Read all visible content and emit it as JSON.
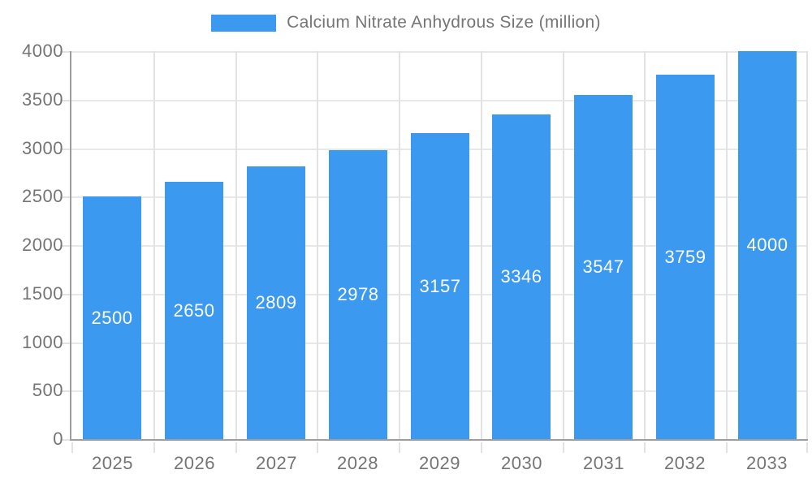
{
  "legend": {
    "label": "Calcium Nitrate Anhydrous Size (million)"
  },
  "chart_data": {
    "type": "bar",
    "title": "Calcium Nitrate Anhydrous Size (million)",
    "categories": [
      "2025",
      "2026",
      "2027",
      "2028",
      "2029",
      "2030",
      "2031",
      "2032",
      "2033"
    ],
    "values": [
      2500,
      2650,
      2809,
      2978,
      3157,
      3346,
      3547,
      3759,
      4000
    ],
    "xlabel": "",
    "ylabel": "",
    "ylim": [
      0,
      4000
    ],
    "y_ticks": [
      0,
      500,
      1000,
      1500,
      2000,
      2500,
      3000,
      3500,
      4000
    ],
    "grid": true,
    "value_labels": "inside-center",
    "legend_position": "top-center",
    "colors": {
      "bar": "#3b99f0",
      "bar_value_text": "#ffffff",
      "axis_text": "#757575",
      "axis_line": "#9e9e9e",
      "gridline_h": "#e8e8e8",
      "gridline_v": "#e2e2e2",
      "background": "#ffffff"
    }
  }
}
